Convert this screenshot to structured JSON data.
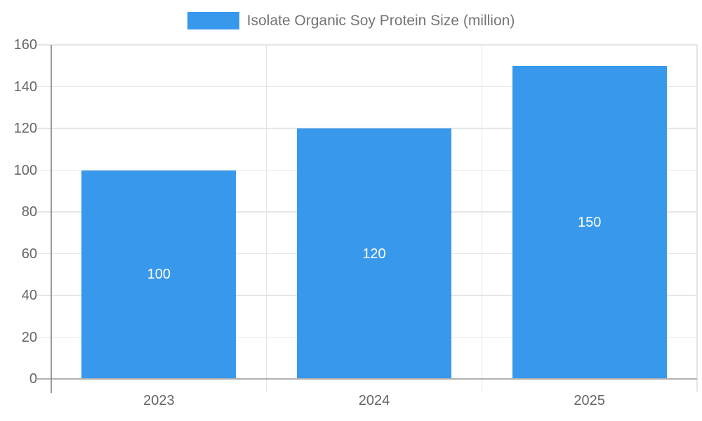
{
  "chart_data": {
    "type": "bar",
    "title": "Isolate Organic Soy Protein Size (million)",
    "categories": [
      "2023",
      "2024",
      "2025"
    ],
    "values": [
      100,
      120,
      150
    ],
    "series": [
      {
        "name": "Isolate Organic Soy Protein Size (million)",
        "values": [
          100,
          120,
          150
        ]
      }
    ],
    "xlabel": "",
    "ylabel": "",
    "ylim": [
      0,
      160
    ],
    "yticks": [
      0,
      20,
      40,
      60,
      80,
      100,
      120,
      140,
      160
    ],
    "grid": true,
    "legend_position": "top",
    "colors": {
      "bar": "#3898ec",
      "bar_label": "#ffffff",
      "axis_text": "#666666",
      "legend_text": "#757575",
      "gridline": "#e6e6e6",
      "baseline": "#b0b0b0",
      "axis_line": "#999999",
      "background": "#ffffff"
    }
  }
}
